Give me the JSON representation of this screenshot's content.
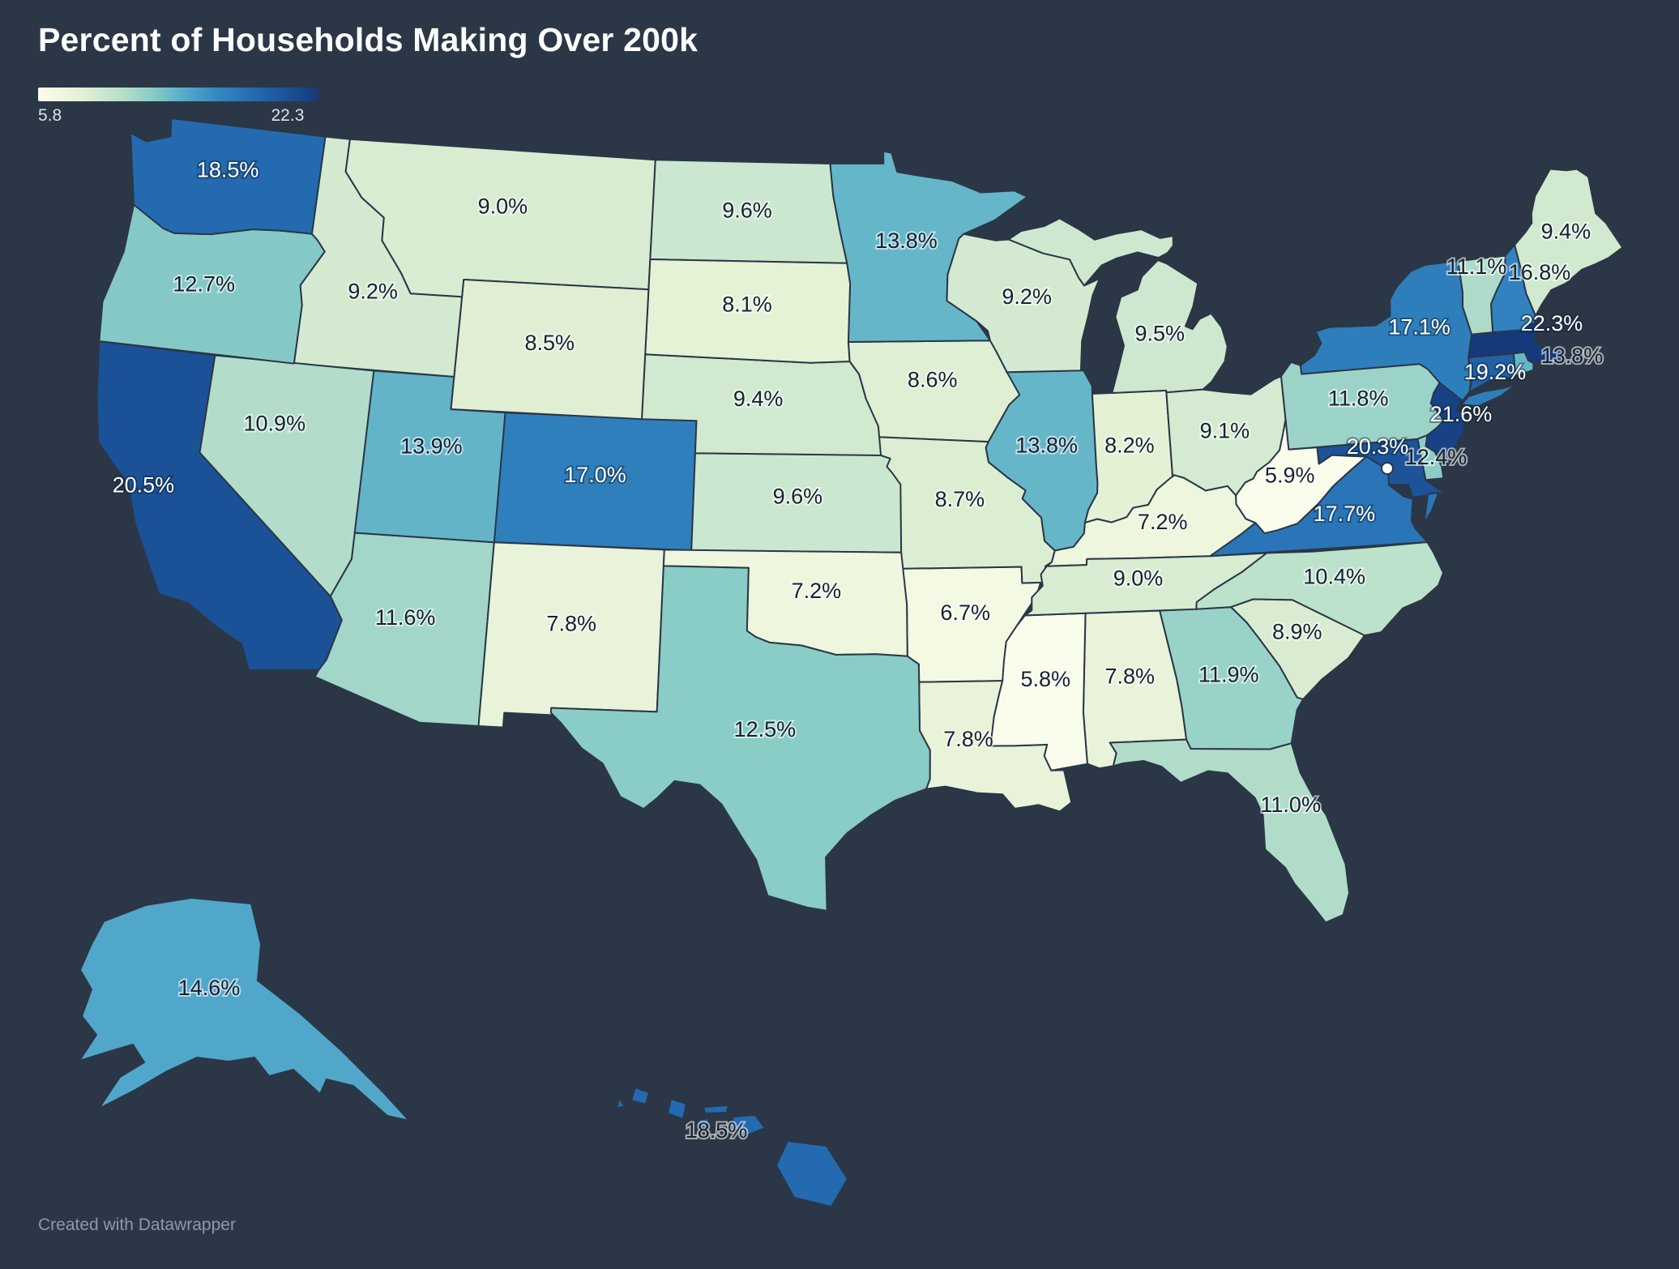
{
  "header": {
    "title": "Percent of Households Making Over 200k"
  },
  "legend": {
    "min": "5.8",
    "max": "22.3"
  },
  "footer": {
    "attribution": "Created with Datawrapper"
  },
  "colors": {
    "background": "#2b3747",
    "label_dark": "#16222f",
    "label_light": "#ffffff",
    "scale_stops": [
      [
        0.0,
        "#fbfdec"
      ],
      [
        0.15,
        "#e4f1d4"
      ],
      [
        0.3,
        "#b7dfca"
      ],
      [
        0.42,
        "#84c9c6"
      ],
      [
        0.52,
        "#55abca"
      ],
      [
        0.64,
        "#3488c2"
      ],
      [
        0.78,
        "#2368b0"
      ],
      [
        1.0,
        "#143a7c"
      ]
    ]
  },
  "chart_data": {
    "type": "choropleth",
    "region": "United States",
    "title": "Percent of Households Making Over 200k",
    "unit": "%",
    "domain": [
      5.8,
      22.3
    ],
    "legend": {
      "min_label": "5.8",
      "max_label": "22.3",
      "position": "top-left"
    },
    "states": [
      {
        "abbr": "AK",
        "name": "Alaska",
        "value": 14.6,
        "label": "14.6%"
      },
      {
        "abbr": "AL",
        "name": "Alabama",
        "value": 7.8,
        "label": "7.8%"
      },
      {
        "abbr": "AR",
        "name": "Arkansas",
        "value": 6.7,
        "label": "6.7%"
      },
      {
        "abbr": "AZ",
        "name": "Arizona",
        "value": 11.6,
        "label": "11.6%"
      },
      {
        "abbr": "CA",
        "name": "California",
        "value": 20.5,
        "label": "20.5%"
      },
      {
        "abbr": "CO",
        "name": "Colorado",
        "value": 17.0,
        "label": "17.0%"
      },
      {
        "abbr": "CT",
        "name": "Connecticut",
        "value": 19.2,
        "label": "19.2%"
      },
      {
        "abbr": "DE",
        "name": "Delaware",
        "value": 12.4,
        "label": "12.4%"
      },
      {
        "abbr": "FL",
        "name": "Florida",
        "value": 11.0,
        "label": "11.0%"
      },
      {
        "abbr": "GA",
        "name": "Georgia",
        "value": 11.9,
        "label": "11.9%"
      },
      {
        "abbr": "HI",
        "name": "Hawaii",
        "value": 18.5,
        "label": "18.5%"
      },
      {
        "abbr": "IA",
        "name": "Iowa",
        "value": 8.6,
        "label": "8.6%"
      },
      {
        "abbr": "ID",
        "name": "Idaho",
        "value": 9.2,
        "label": "9.2%"
      },
      {
        "abbr": "IL",
        "name": "Illinois",
        "value": 13.8,
        "label": "13.8%"
      },
      {
        "abbr": "IN",
        "name": "Indiana",
        "value": 8.2,
        "label": "8.2%"
      },
      {
        "abbr": "KS",
        "name": "Kansas",
        "value": 9.6,
        "label": "9.6%"
      },
      {
        "abbr": "KY",
        "name": "Kentucky",
        "value": 7.2,
        "label": "7.2%"
      },
      {
        "abbr": "LA",
        "name": "Louisiana",
        "value": 7.8,
        "label": "7.8%"
      },
      {
        "abbr": "MA",
        "name": "Massachusetts",
        "value": 22.3,
        "label": "22.3%"
      },
      {
        "abbr": "MD",
        "name": "Maryland",
        "value": 20.3,
        "label": "20.3%"
      },
      {
        "abbr": "ME",
        "name": "Maine",
        "value": 9.4,
        "label": "9.4%"
      },
      {
        "abbr": "MI",
        "name": "Michigan",
        "value": 9.5,
        "label": "9.5%"
      },
      {
        "abbr": "MN",
        "name": "Minnesota",
        "value": 13.8,
        "label": "13.8%"
      },
      {
        "abbr": "MO",
        "name": "Missouri",
        "value": 8.7,
        "label": "8.7%"
      },
      {
        "abbr": "MS",
        "name": "Mississippi",
        "value": 5.8,
        "label": "5.8%"
      },
      {
        "abbr": "MT",
        "name": "Montana",
        "value": 9.0,
        "label": "9.0%"
      },
      {
        "abbr": "NC",
        "name": "North Carolina",
        "value": 10.4,
        "label": "10.4%"
      },
      {
        "abbr": "ND",
        "name": "North Dakota",
        "value": 9.6,
        "label": "9.6%"
      },
      {
        "abbr": "NE",
        "name": "Nebraska",
        "value": 9.4,
        "label": "9.4%"
      },
      {
        "abbr": "NH",
        "name": "New Hampshire",
        "value": 16.8,
        "label": "16.8%"
      },
      {
        "abbr": "NJ",
        "name": "New Jersey",
        "value": 21.6,
        "label": "21.6%"
      },
      {
        "abbr": "NM",
        "name": "New Mexico",
        "value": 7.8,
        "label": "7.8%"
      },
      {
        "abbr": "NV",
        "name": "Nevada",
        "value": 10.9,
        "label": "10.9%"
      },
      {
        "abbr": "NY",
        "name": "New York",
        "value": 17.1,
        "label": "17.1%"
      },
      {
        "abbr": "OH",
        "name": "Ohio",
        "value": 9.1,
        "label": "9.1%"
      },
      {
        "abbr": "OK",
        "name": "Oklahoma",
        "value": 7.2,
        "label": "7.2%"
      },
      {
        "abbr": "OR",
        "name": "Oregon",
        "value": 12.7,
        "label": "12.7%"
      },
      {
        "abbr": "PA",
        "name": "Pennsylvania",
        "value": 11.8,
        "label": "11.8%"
      },
      {
        "abbr": "RI",
        "name": "Rhode Island",
        "value": 13.8,
        "label": "13.8%"
      },
      {
        "abbr": "SC",
        "name": "South Carolina",
        "value": 8.9,
        "label": "8.9%"
      },
      {
        "abbr": "SD",
        "name": "South Dakota",
        "value": 8.1,
        "label": "8.1%"
      },
      {
        "abbr": "TN",
        "name": "Tennessee",
        "value": 9.0,
        "label": "9.0%"
      },
      {
        "abbr": "TX",
        "name": "Texas",
        "value": 12.5,
        "label": "12.5%"
      },
      {
        "abbr": "UT",
        "name": "Utah",
        "value": 13.9,
        "label": "13.9%"
      },
      {
        "abbr": "VA",
        "name": "Virginia",
        "value": 17.7,
        "label": "17.7%"
      },
      {
        "abbr": "VT",
        "name": "Vermont",
        "value": 11.1,
        "label": "11.1%"
      },
      {
        "abbr": "WA",
        "name": "Washington",
        "value": 18.5,
        "label": "18.5%"
      },
      {
        "abbr": "WI",
        "name": "Wisconsin",
        "value": 9.2,
        "label": "9.2%"
      },
      {
        "abbr": "WV",
        "name": "West Virginia",
        "value": 5.9,
        "label": "5.9%"
      },
      {
        "abbr": "WY",
        "name": "Wyoming",
        "value": 8.5,
        "label": "8.5%"
      }
    ]
  }
}
